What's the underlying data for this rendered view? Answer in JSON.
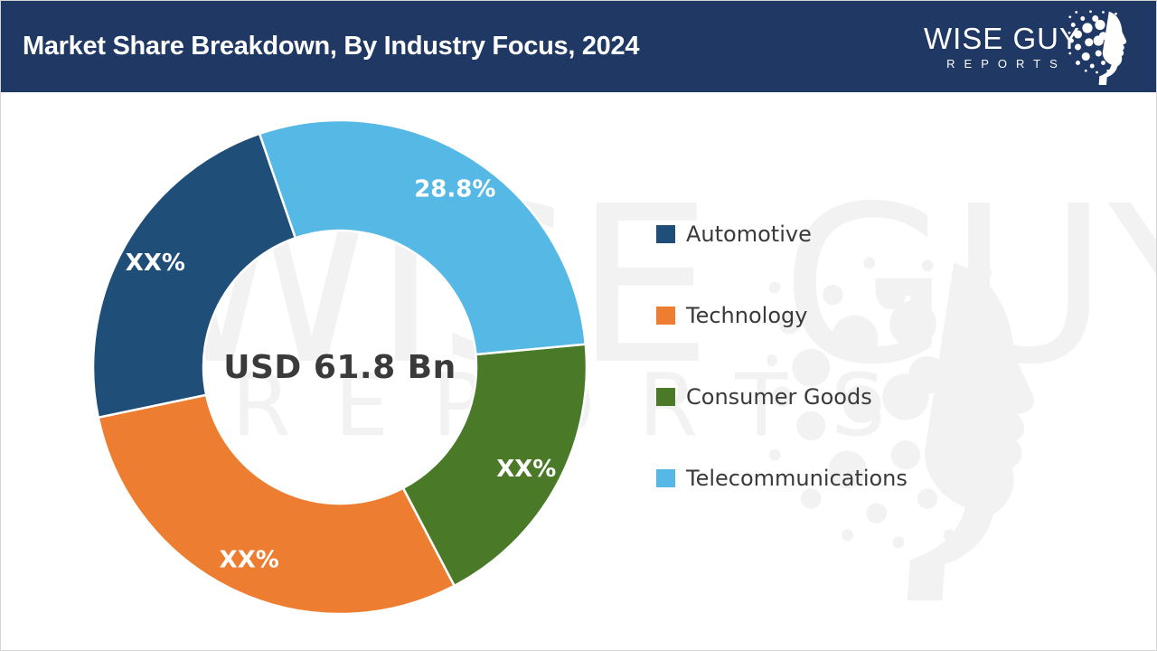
{
  "header": {
    "title": "Market Share Breakdown, By Industry Focus, 2024",
    "logo": {
      "line1": "WISE GUY",
      "line2": "REPORTS"
    }
  },
  "watermark": {
    "line1": "WISE GUY",
    "line2": "REPORTS"
  },
  "colors": {
    "header_bg": "#1F3864",
    "automotive": "#1F4E79",
    "technology": "#ED7D31",
    "consumer_goods": "#4A7A28",
    "telecommunications": "#56B8E5",
    "slice_gap": "#ffffff",
    "text_dark": "#3a3a3a",
    "watermark": "#f2f2f2"
  },
  "chart_data": {
    "type": "pie",
    "subtype": "donut",
    "title": "Market Share Breakdown, By Industry Focus, 2024",
    "center_label": "USD 61.8 Bn",
    "start_angle_deg_from_north": -19,
    "direction": "counterclockwise",
    "donut_inner_ratio": 0.553,
    "label_radius_ratio": 0.86,
    "legend_position": "right",
    "series": [
      {
        "name": "Automotive",
        "value_pct": 23.0,
        "label": "XX%",
        "color": "#1F4E79"
      },
      {
        "name": "Technology",
        "value_pct": 29.4,
        "label": "XX%",
        "color": "#ED7D31"
      },
      {
        "name": "Consumer Goods",
        "value_pct": 18.8,
        "label": "XX%",
        "color": "#4A7A28"
      },
      {
        "name": "Telecommunications",
        "value_pct": 28.8,
        "label": "28.8%",
        "color": "#56B8E5"
      }
    ]
  }
}
